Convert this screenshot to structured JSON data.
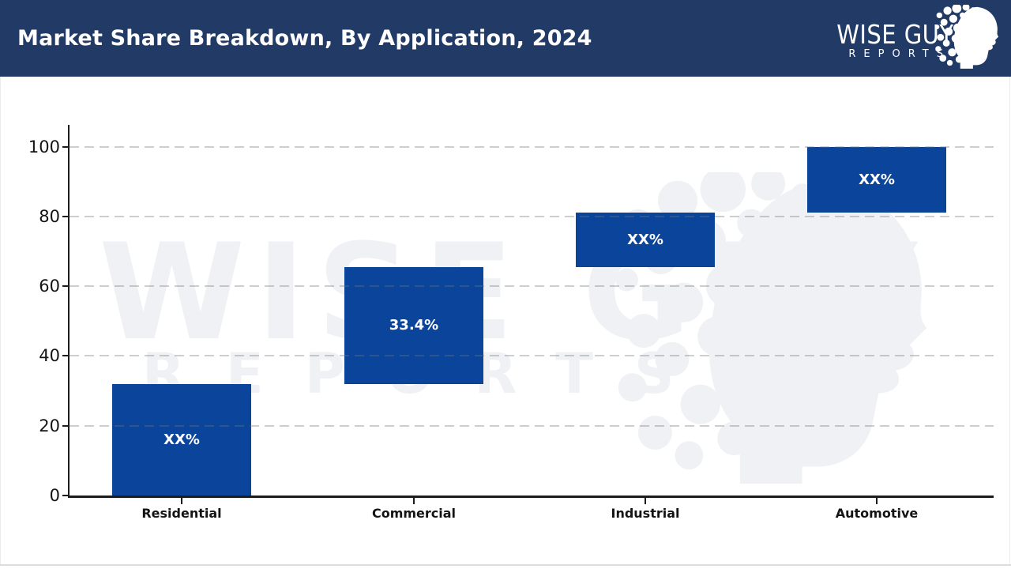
{
  "header": {
    "title": "Market Share Breakdown, By Application, 2024",
    "logo": {
      "line1": "WISE GUY",
      "line2": "REPORTS"
    }
  },
  "watermark": {
    "line1": "WISE GUY",
    "line2": "REPORTS"
  },
  "chart_data": {
    "type": "bar",
    "subtype": "waterfall-floating-bars",
    "title": "Market Share Breakdown, By Application, 2024",
    "categories": [
      "Residential",
      "Commercial",
      "Industrial",
      "Automotive"
    ],
    "segments": [
      {
        "category": "Residential",
        "start": 0,
        "end": 32,
        "label": "XX%"
      },
      {
        "category": "Commercial",
        "start": 32,
        "end": 65.4,
        "label": "33.4%"
      },
      {
        "category": "Industrial",
        "start": 65.4,
        "end": 81,
        "label": "XX%"
      },
      {
        "category": "Automotive",
        "start": 81,
        "end": 100,
        "label": "XX%"
      }
    ],
    "yticks": [
      0,
      20,
      40,
      60,
      80,
      100
    ],
    "ylim": [
      0,
      100
    ],
    "xlabel": "",
    "ylabel": "",
    "grid": true,
    "legend": false
  },
  "colors": {
    "header_bg": "#213a66",
    "bar_fill": "#0b459b",
    "bar_label": "#ffffff",
    "axis": "#1c1c1c",
    "gridline_on_white": "#d4d4d4",
    "watermark": "#eff1f4",
    "page_bg": "#ffffff"
  }
}
